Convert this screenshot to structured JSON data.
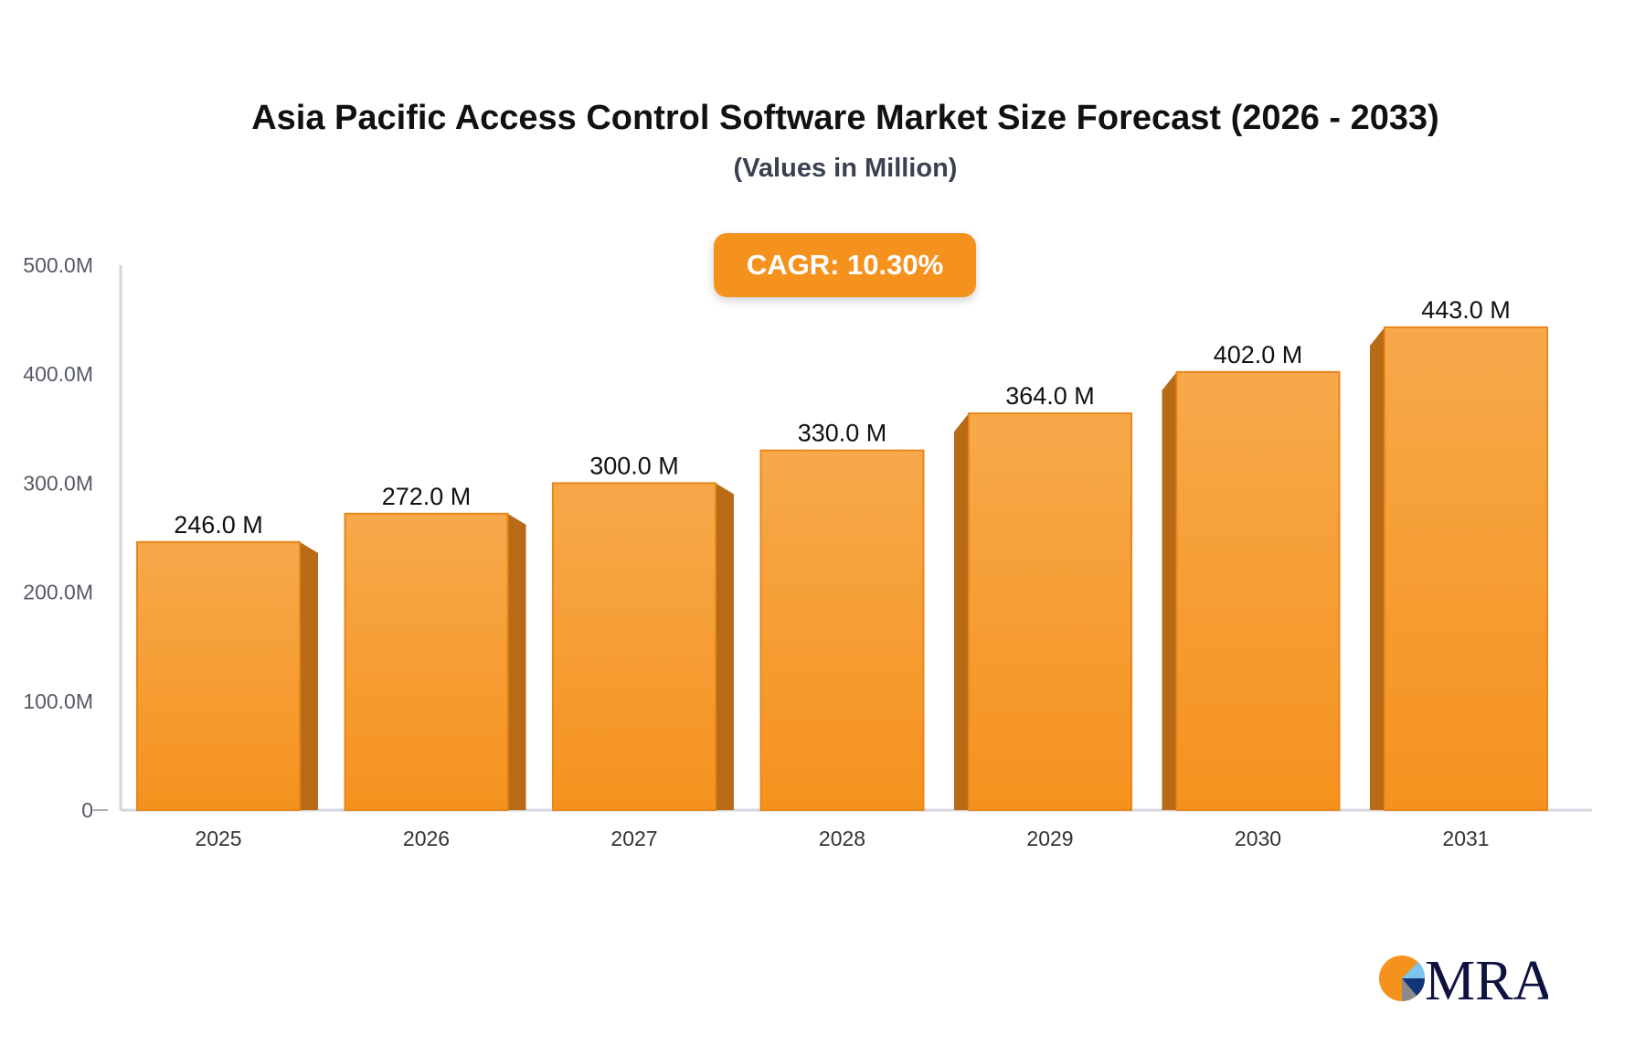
{
  "chart_data": {
    "type": "bar",
    "title": "Asia Pacific Access Control Software Market Size Forecast (2026 - 2033)",
    "subtitle": "(Values in Million)",
    "annotation": "CAGR: 10.30%",
    "categories": [
      "2025",
      "2026",
      "2027",
      "2028",
      "2029",
      "2030",
      "2031"
    ],
    "values": [
      246.0,
      272.0,
      300.0,
      330.0,
      364.0,
      402.0,
      443.0
    ],
    "data_labels": [
      "246.0 M",
      "272.0 M",
      "300.0 M",
      "330.0 M",
      "364.0 M",
      "402.0 M",
      "443.0 M"
    ],
    "yticks": [
      0,
      100,
      200,
      300,
      400,
      500
    ],
    "ytick_labels": [
      "0",
      "100.0M",
      "200.0M",
      "300.0M",
      "400.0M",
      "500.0M"
    ],
    "ylim": [
      0,
      500
    ],
    "xlabel": "",
    "ylabel": "",
    "grid": false,
    "colors": {
      "bar_top": "#f7a94b",
      "bar_bottom": "#f5921e",
      "bar_side": "#b86b16",
      "axis": "#d3d6dd",
      "cagr_badge": "#f5921e"
    }
  },
  "logo": {
    "text": "MRA"
  }
}
